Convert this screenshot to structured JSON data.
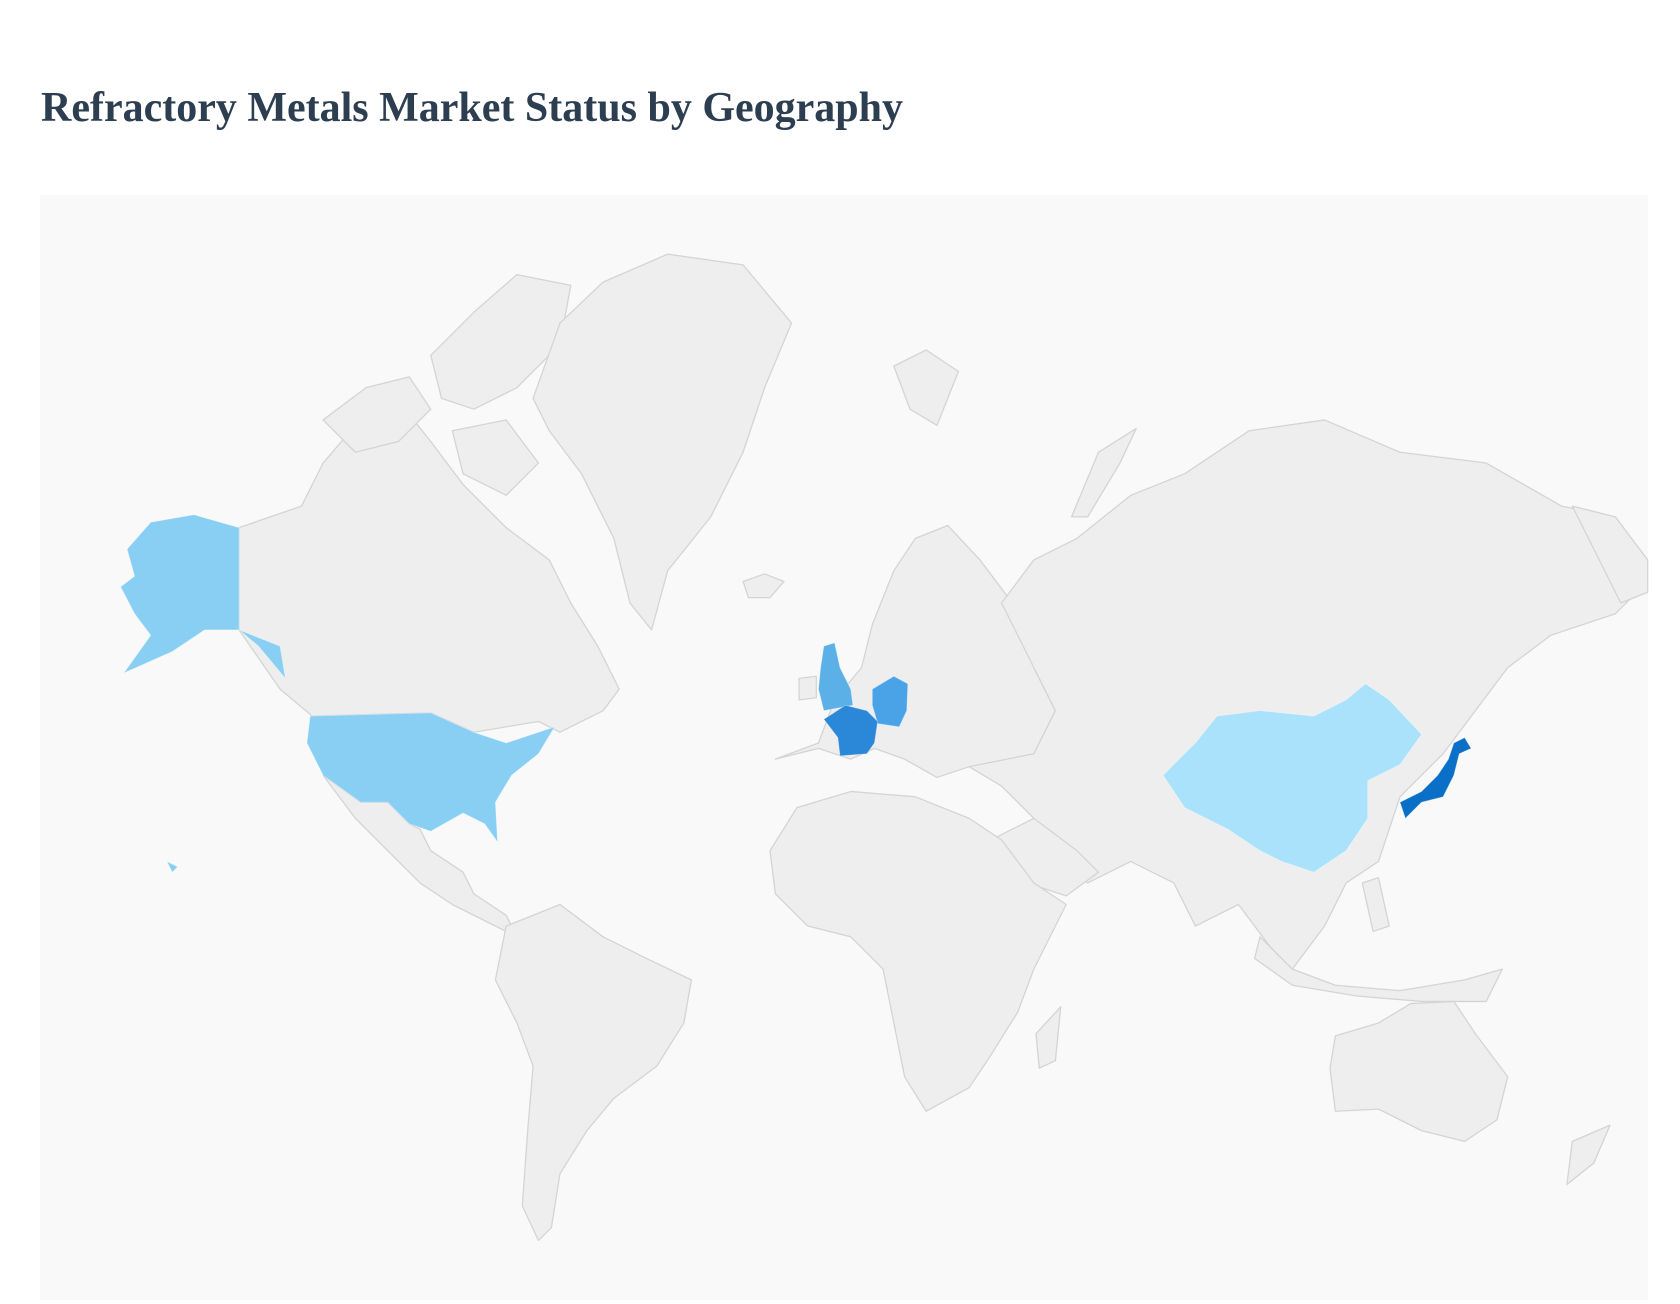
{
  "header": {
    "title": "Refractory Metals Market Status by Geography"
  },
  "map": {
    "type": "choropleth",
    "projection": "world",
    "land_color": "#eeeeee",
    "border_color": "#d4d4d4",
    "background_color": "#f9f9f9",
    "highlighted_regions": [
      {
        "region": "United States",
        "color": "#89cff3"
      },
      {
        "region": "China",
        "color": "#a9e2fa"
      },
      {
        "region": "United Kingdom",
        "color": "#5bb0e8"
      },
      {
        "region": "Germany",
        "color": "#4aa3e6"
      },
      {
        "region": "France",
        "color": "#2b88d8"
      },
      {
        "region": "Japan",
        "color": "#0a6fc6"
      }
    ]
  }
}
